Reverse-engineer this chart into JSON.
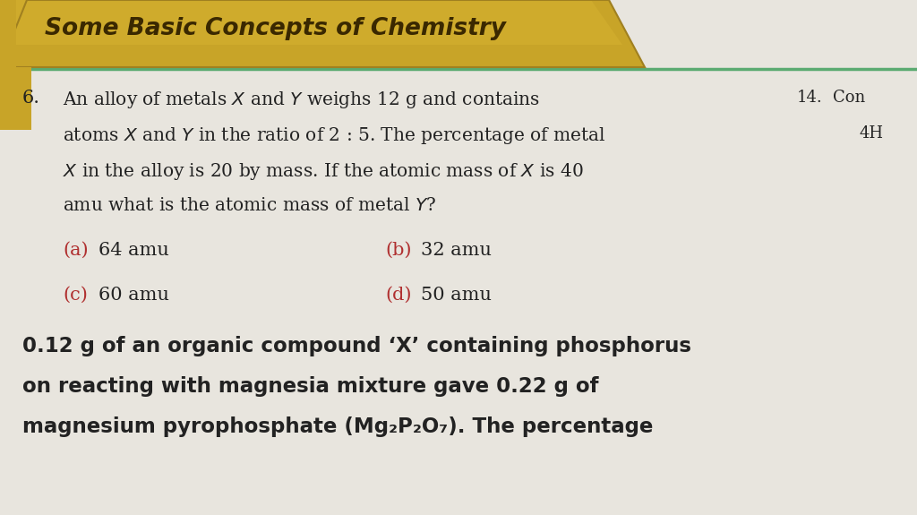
{
  "title": "Some Basic Concepts of Chemistry",
  "title_bg_color": "#c8a830",
  "title_text_color": "#3a2800",
  "bg_color": "#e8e4dc",
  "question_number": "6.",
  "side_number": "14.",
  "side_text": "Con",
  "side_number2": "4H",
  "q_line1": "An alloy of metals $X$ and $Y$ weighs 12 g and contains",
  "q_line2": "atoms $X$ and $Y$ in the ratio of 2 : 5. The percentage of metal",
  "q_line3": "$X$ in the alloy is 20 by mass. If the atomic mass of $X$ is 40",
  "q_line4": "amu what is the atomic mass of metal $Y$?",
  "opt_a_label": "(a)",
  "opt_a_text": "64 amu",
  "opt_b_label": "(b)",
  "opt_b_text": "32 amu",
  "opt_c_label": "(c)",
  "opt_c_text": "60 amu",
  "opt_d_label": "(d)",
  "opt_d_text": "50 amu",
  "option_label_color": "#b03030",
  "option_text_color": "#222222",
  "body_color": "#222222",
  "footer_line1": "0.12 g of an organic compound ‘X’ containing phosphorus",
  "footer_line2": "on reacting with magnesia mixture gave 0.22 g of",
  "footer_line3": "magnesium pyrophosphate (Mg₂P₂O₇). The percentage",
  "line_color": "#5aaa70",
  "banner_color1": "#c8a428",
  "banner_color2": "#d4b030",
  "tab_color": "#c8a428"
}
